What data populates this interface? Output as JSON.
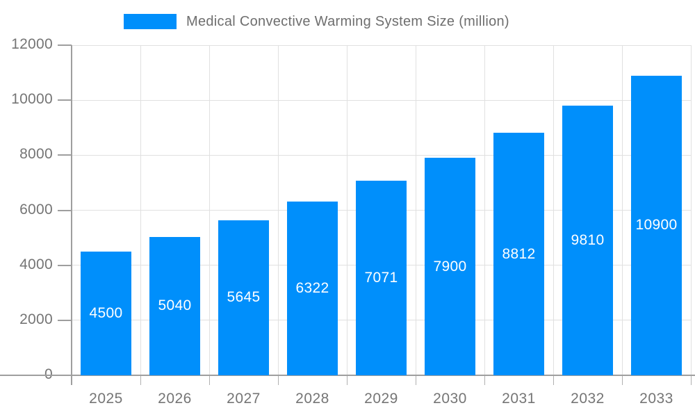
{
  "chart_data": {
    "type": "bar",
    "title": "Medical Convective Warming System Size (million)",
    "categories": [
      "2025",
      "2026",
      "2027",
      "2028",
      "2029",
      "2030",
      "2031",
      "2032",
      "2033"
    ],
    "values": [
      4500,
      5040,
      5645,
      6322,
      7071,
      7900,
      8812,
      9810,
      10900
    ],
    "series": [
      {
        "name": "Medical Convective Warming System Size (million)",
        "values": [
          4500,
          5040,
          5645,
          6322,
          7071,
          7900,
          8812,
          9810,
          10900
        ]
      }
    ],
    "xlabel": "",
    "ylabel": "",
    "ylim": [
      0,
      12000
    ],
    "y_ticks": [
      0,
      2000,
      4000,
      6000,
      8000,
      10000,
      12000
    ],
    "grid": "on",
    "legend_position": "top",
    "bar_color": "#008FFB",
    "value_label_color": "#ffffff",
    "axis_text_color": "#757575",
    "legend_text_color": "#6e6e6e",
    "grid_color": "#e0e0e0",
    "axis_line_color": "#9e9e9e"
  }
}
